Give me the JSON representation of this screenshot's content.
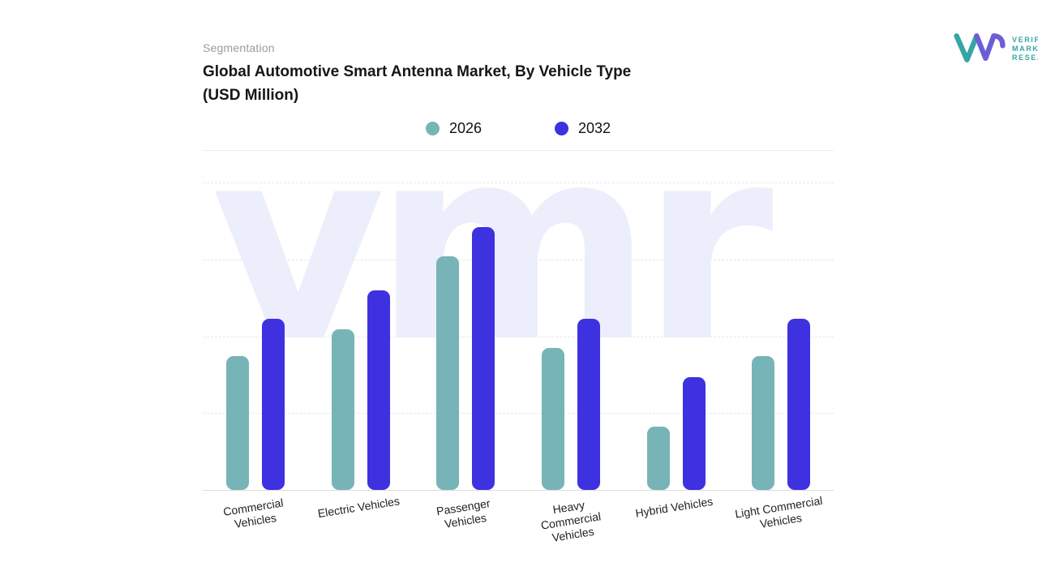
{
  "header": {
    "eyebrow": "Segmentation",
    "title_line1": "Global Automotive Smart Antenna Market, By Vehicle Type",
    "title_line2": "(USD Million)"
  },
  "logo": {
    "text_line1": "VERIFIED",
    "text_line2": "MARKET",
    "text_line3": "RESEARCH",
    "registered": "®",
    "teal": "#35a6a4",
    "purple": "#6a5fd6"
  },
  "legend": [
    {
      "label": "2026",
      "color": "#77b4b7"
    },
    {
      "label": "2032",
      "color": "#3e31e0"
    }
  ],
  "watermark_text": "vmr",
  "chart_data": {
    "type": "bar",
    "title": "Global Automotive Smart Antenna Market, By Vehicle Type (USD Million)",
    "subtitle_eyebrow": "Segmentation",
    "categories": [
      "Commercial Vehicles",
      "Electric Vehicles",
      "Passenger Vehicles",
      "Heavy Commercial Vehicles",
      "Hybrid Vehicles",
      "Light Commercial Vehicles"
    ],
    "series": [
      {
        "name": "2026",
        "color": "#77b4b7",
        "values": [
          51,
          61,
          89,
          54,
          24,
          51
        ]
      },
      {
        "name": "2032",
        "color": "#3e31e0",
        "values": [
          65,
          76,
          100,
          65,
          43,
          65
        ]
      }
    ],
    "ylim": [
      0,
      100
    ],
    "value_note": "relative estimates; no numeric axis labels shown in figure",
    "xlabel": "",
    "ylabel": "",
    "grid": "horizontal dashed",
    "legend_position": "top-center"
  }
}
